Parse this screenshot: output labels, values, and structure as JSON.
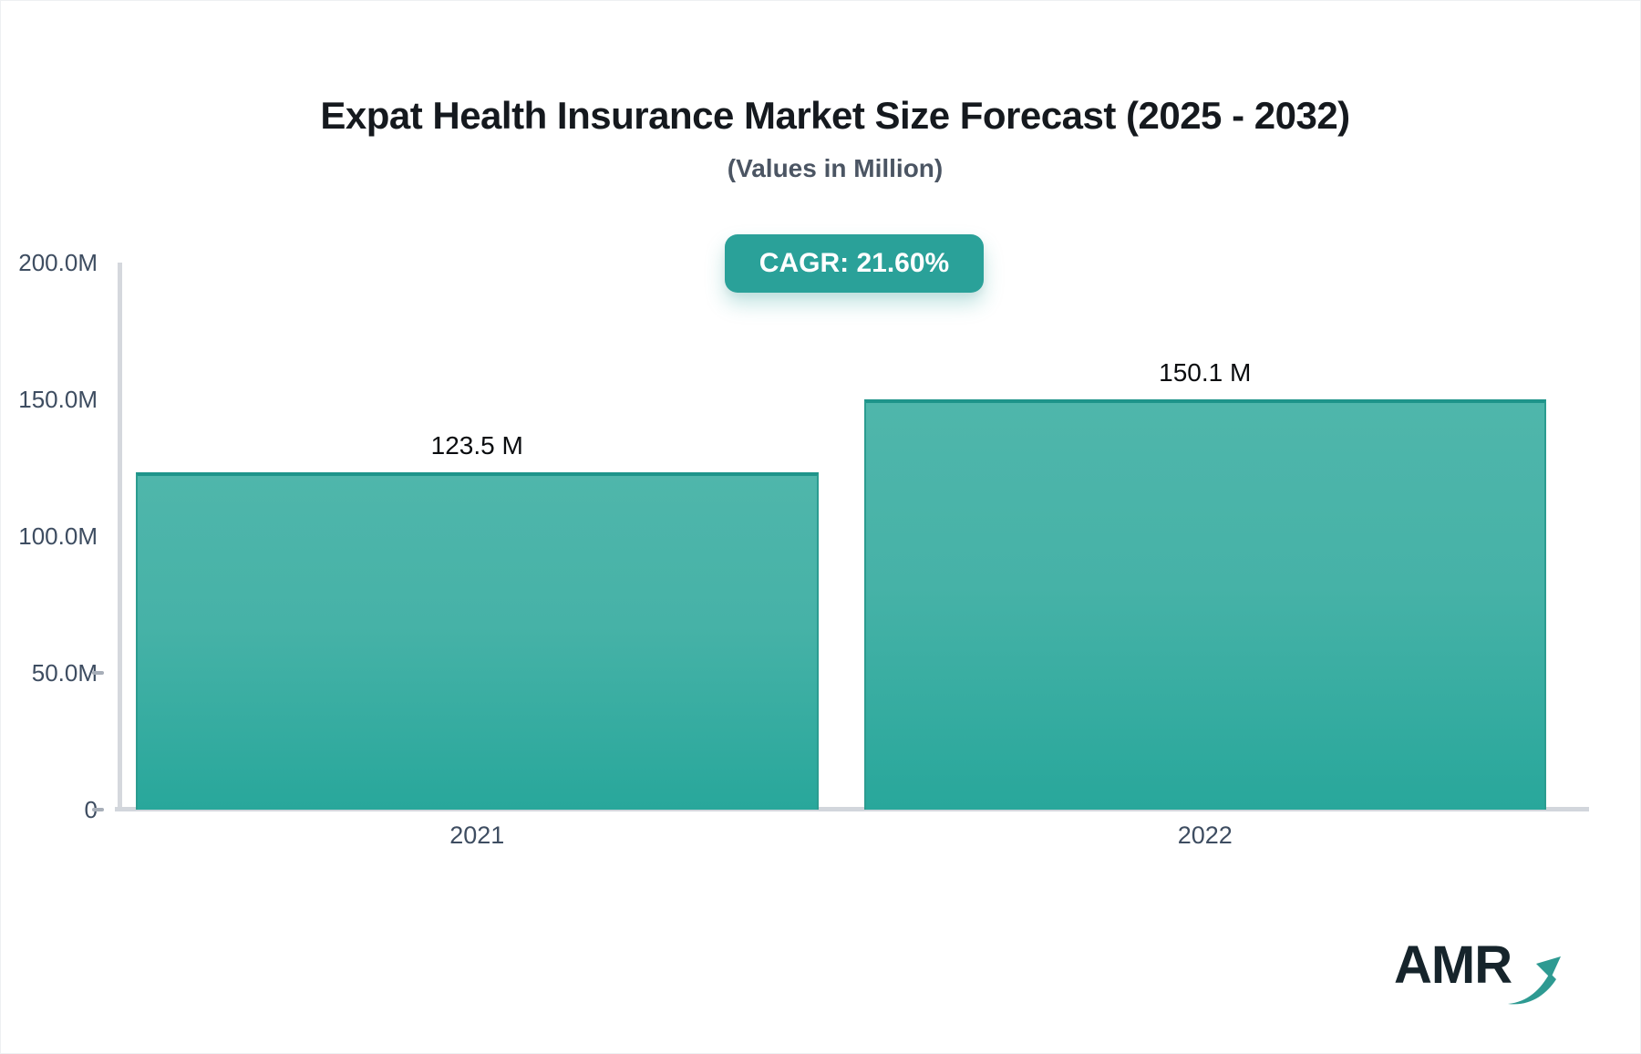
{
  "page": {
    "title": "Expat Health Insurance Market Size Forecast (2025 - 2032)",
    "subtitle": "(Values in Million)",
    "cagr_label": "CAGR: 21.60%"
  },
  "logo": {
    "text": "AMR",
    "icon": "trend-up-arrow-icon"
  },
  "colors": {
    "accent_teal": "#2AA199",
    "bar_gradient_top": "#4FB6AB",
    "bar_gradient_bottom": "#28A79B",
    "bar_border": "#1E948A",
    "axis_line": "#D5D8DD",
    "tick_text": "#3E4D61",
    "title_text": "#15191E",
    "subtitle_text": "#4B5563",
    "value_label_text": "#0A0C0F",
    "logo_text": "#16242B",
    "logo_arrow": "#2E9A92"
  },
  "chart_data": {
    "type": "bar",
    "title": "Expat Health Insurance Market Size Forecast (2025 - 2032)",
    "subtitle": "(Values in Million)",
    "annotation": "CAGR: 21.60%",
    "unit": "Million",
    "categories": [
      "2021",
      "2022"
    ],
    "values": [
      123.5,
      150.1
    ],
    "value_labels": [
      "123.5 M",
      "150.1 M"
    ],
    "xlabel": "",
    "ylabel": "",
    "ylim": [
      0,
      200
    ],
    "yticks": [
      {
        "value": 200,
        "label": "200.0M",
        "dash": false
      },
      {
        "value": 150,
        "label": "150.0M",
        "dash": false
      },
      {
        "value": 100,
        "label": "100.0M",
        "dash": false
      },
      {
        "value": 50,
        "label": "50.0M",
        "dash": true
      },
      {
        "value": 0,
        "label": "0",
        "dash": true
      }
    ],
    "grid": false,
    "legend": "none"
  }
}
